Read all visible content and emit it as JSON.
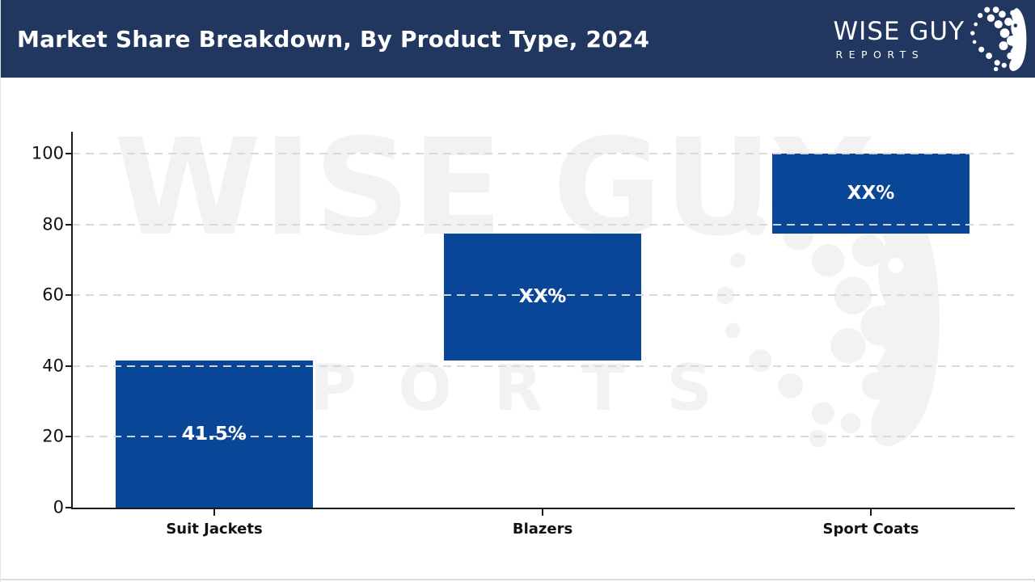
{
  "header": {
    "title": "Market Share Breakdown, By Product Type, 2024",
    "bg_color": "#213760",
    "logo": {
      "line1": "WISE GUY",
      "line2": "REPORTS"
    }
  },
  "watermark": {
    "line1": "WISE GUY",
    "line2": "REPORTS"
  },
  "chart_data": {
    "type": "bar",
    "subtype": "waterfall",
    "title": "Market Share Breakdown, By Product Type, 2024",
    "categories": [
      "Suit Jackets",
      "Blazers",
      "Sport Coats"
    ],
    "segments": [
      {
        "category": "Suit Jackets",
        "start": 0,
        "end": 41.5,
        "label": "41.5%"
      },
      {
        "category": "Blazers",
        "start": 41.5,
        "end": 77.5,
        "label": "XX%"
      },
      {
        "category": "Sport Coats",
        "start": 77.5,
        "end": 100,
        "label": "XX%"
      }
    ],
    "bar_color": "#0a4697",
    "label_color": "#ffffff",
    "xlabel": "",
    "ylabel": "",
    "y_ticks": [
      0,
      20,
      40,
      60,
      80,
      100
    ],
    "ylim": [
      0,
      106
    ],
    "grid": "horizontal-dashed",
    "legend": "none"
  }
}
